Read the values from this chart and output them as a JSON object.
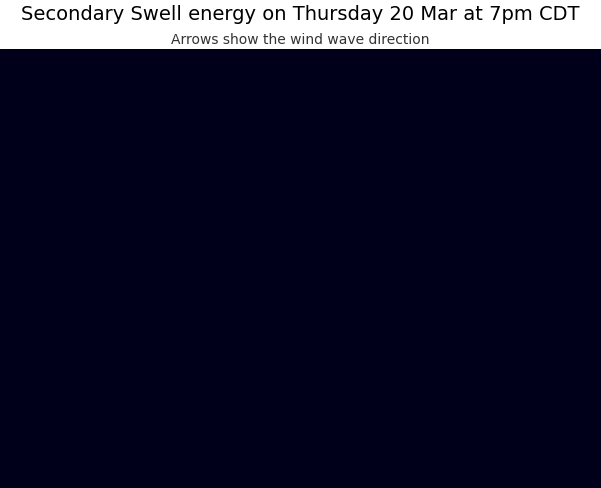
{
  "title": "Secondary Swell energy on Thursday 20 Mar at 7pm CDT",
  "subtitle": "Arrows show the wind wave direction",
  "title_fontsize": 14,
  "subtitle_fontsize": 10,
  "title_color": "#000000",
  "subtitle_color": "#333333",
  "background_color": "#ffffff",
  "header_bg": "#ffffff",
  "map_bg": "#000033",
  "figsize": [
    6.01,
    4.89
  ],
  "dpi": 100
}
